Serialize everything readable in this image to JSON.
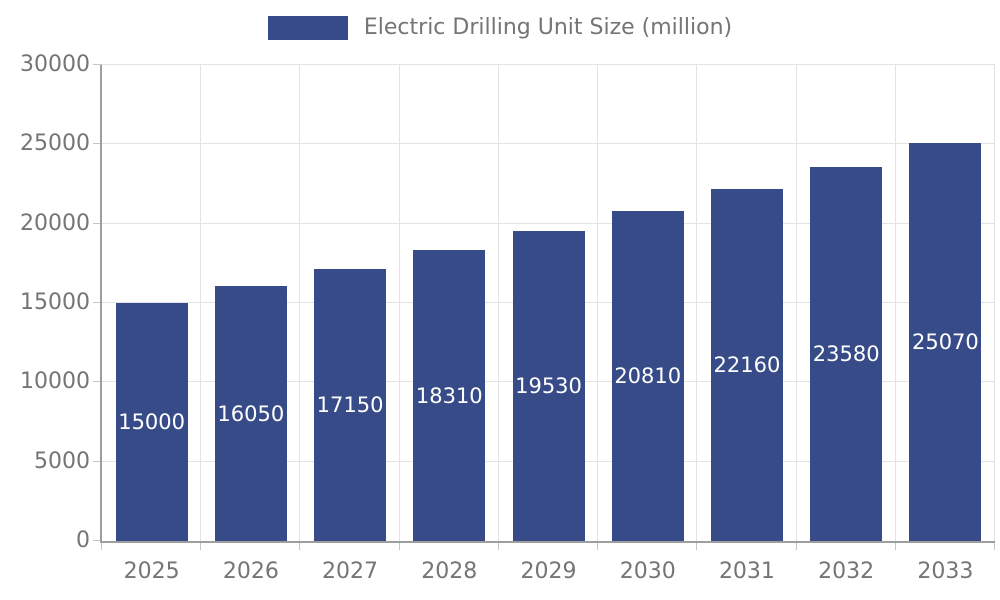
{
  "legend": {
    "label": "Electric Drilling Unit Size (million)"
  },
  "chart_data": {
    "type": "bar",
    "title": "Electric Drilling Unit Size (million)",
    "series_name": "Electric Drilling Unit Size (million)",
    "categories": [
      "2025",
      "2026",
      "2027",
      "2028",
      "2029",
      "2030",
      "2031",
      "2032",
      "2033"
    ],
    "values": [
      15000,
      16050,
      17150,
      18310,
      19530,
      20810,
      22160,
      23580,
      25070
    ],
    "xlabel": "",
    "ylabel": "",
    "ylim": [
      0,
      30000
    ],
    "yticks": [
      0,
      5000,
      10000,
      15000,
      20000,
      25000,
      30000
    ],
    "grid": true,
    "legend_position": "top-center",
    "colors": {
      "bar": "#374B88",
      "bar_label_text": "#ffffff",
      "axis_text": "#757575",
      "legend_text": "#757575",
      "grid_line": "#E3E3E3",
      "axis_line": "#9E9E9E",
      "tick_mark": "#C6C6C6"
    }
  }
}
